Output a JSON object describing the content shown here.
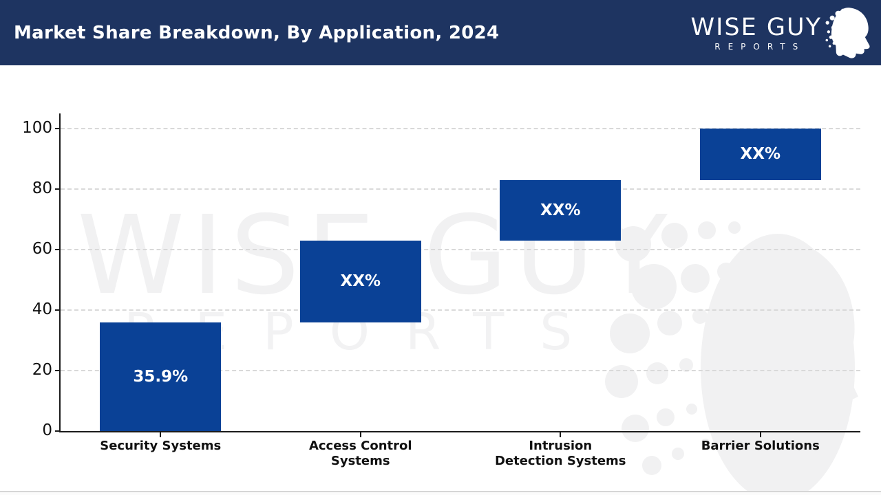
{
  "header": {
    "title": "Market Share Breakdown, By Application, 2024",
    "bg_color": "#1e3461",
    "logo": {
      "line1": "WISE GUY",
      "line2": "REPORTS"
    }
  },
  "watermark": {
    "line1": "WISE GUY",
    "line2": "REPORTS"
  },
  "colors": {
    "bar_blue": "#0a4196",
    "header_navy": "#1e3461",
    "grid_gray": "#d9d9d9",
    "watermark_gray": "#f1f1f2"
  },
  "chart_data": {
    "type": "bar",
    "subtype": "waterfall",
    "title": "Market Share Breakdown, By Application, 2024",
    "xlabel": "",
    "ylabel": "",
    "ylim": [
      0,
      105
    ],
    "y_ticks": [
      0,
      20,
      40,
      60,
      80,
      100
    ],
    "grid": true,
    "legend": false,
    "bar_color": "#0a4196",
    "categories": [
      "Security Systems",
      "Access Control Systems",
      "Intrusion Detection Systems",
      "Barrier Solutions"
    ],
    "segments": [
      {
        "category": "Security Systems",
        "display_lines": [
          "Security Systems"
        ],
        "start": 0,
        "end": 35.9,
        "label": "35.9%"
      },
      {
        "category": "Access Control Systems",
        "display_lines": [
          "Access Control",
          "Systems"
        ],
        "start": 35.9,
        "end": 63,
        "label": "XX%"
      },
      {
        "category": "Intrusion Detection Systems",
        "display_lines": [
          "Intrusion",
          "Detection Systems"
        ],
        "start": 63,
        "end": 83,
        "label": "XX%"
      },
      {
        "category": "Barrier Solutions",
        "display_lines": [
          "Barrier Solutions"
        ],
        "start": 83,
        "end": 100,
        "label": "XX%"
      }
    ]
  }
}
